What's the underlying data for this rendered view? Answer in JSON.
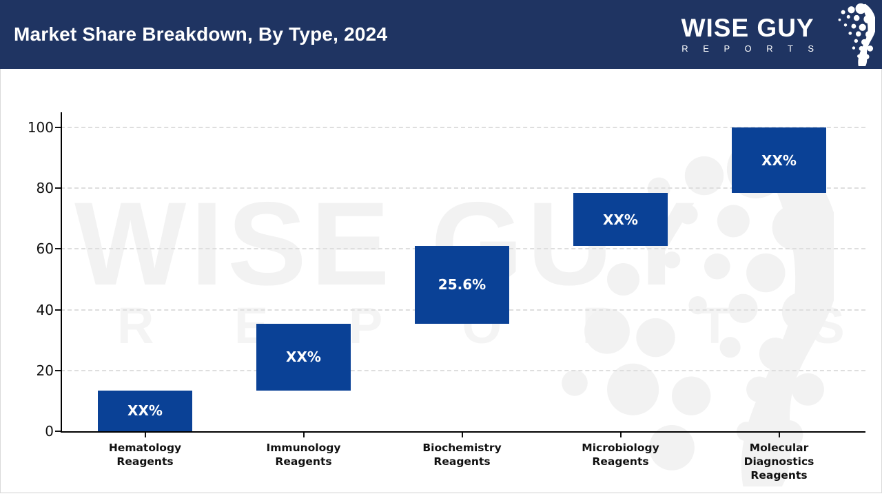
{
  "header": {
    "title": "Market Share Breakdown, By Type, 2024",
    "bg_color": "#1f3462",
    "logo": {
      "line1": "WISE GUY",
      "line2": "R E P O R T S",
      "head_icon": "dotted-head-profile"
    }
  },
  "watermark": {
    "line1": "WISE GUY",
    "line2": "R E P O R T S",
    "head_icon": "dotted-head-profile",
    "color": "#f2f2f2"
  },
  "chart_data": {
    "type": "bar",
    "subtype": "waterfall",
    "title": "Market Share Breakdown, By Type, 2024",
    "categories": [
      "Hematology Reagents",
      "Immunology Reagents",
      "Biochemistry Reagents",
      "Microbiology Reagents",
      "Molecular Diagnostics Reagents"
    ],
    "segments": [
      {
        "category": "Hematology Reagents",
        "display": "Hematology\nReagents",
        "start": 0,
        "end": 13.4,
        "label": "XX%"
      },
      {
        "category": "Immunology Reagents",
        "display": "Immunology\nReagents",
        "start": 13.4,
        "end": 35.4,
        "label": "XX%"
      },
      {
        "category": "Biochemistry Reagents",
        "display": "Biochemistry\nReagents",
        "start": 35.4,
        "end": 61.0,
        "label": "25.6%"
      },
      {
        "category": "Microbiology Reagents",
        "display": "Microbiology\nReagents",
        "start": 61.0,
        "end": 78.4,
        "label": "XX%"
      },
      {
        "category": "Molecular Diagnostics Reagents",
        "display": "Molecular\nDiagnostics\nReagents",
        "start": 78.4,
        "end": 100.0,
        "label": "XX%"
      }
    ],
    "yticks": [
      0,
      20,
      40,
      60,
      80,
      100
    ],
    "ylim": [
      0,
      105
    ],
    "xlabel": "",
    "ylabel": "",
    "grid": "horizontal-dashed",
    "legend": "none",
    "colors": {
      "bar": "#0a4196",
      "bar_label": "#ffffff",
      "grid": "#dedede",
      "axis": "#000000",
      "tick_text": "#111111"
    }
  }
}
